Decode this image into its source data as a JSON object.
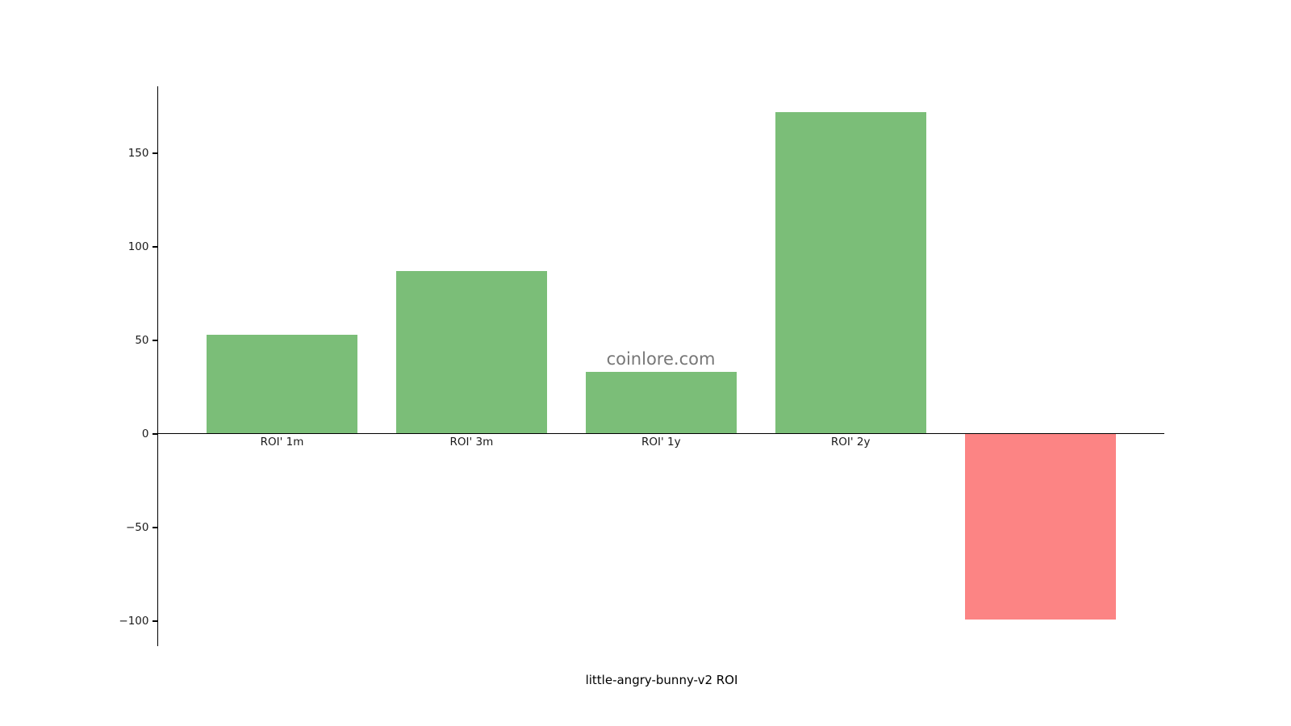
{
  "chart_data": {
    "type": "bar",
    "title": "little-angry-bunny-v2 ROI",
    "watermark": "coinlore.com",
    "categories": [
      "ROI' 1m",
      "ROI' 3m",
      "ROI' 1y",
      "ROI' 2y",
      ""
    ],
    "values": [
      53,
      87,
      33,
      172,
      -99
    ],
    "bar_colors": [
      "#7bbe78",
      "#7bbe78",
      "#7bbe78",
      "#7bbe78",
      "#fc8484"
    ],
    "positive_color": "#7bbe78",
    "negative_color": "#fc8484",
    "xlabel": "",
    "ylabel": "",
    "y_ticks": [
      150,
      100,
      50,
      0,
      -50,
      -100
    ],
    "y_tick_labels": [
      "150",
      "100",
      "50",
      "0",
      "−50",
      "−100"
    ],
    "ylim": [
      -113,
      186
    ],
    "grid": false,
    "legend": null,
    "axis_color": "#000000",
    "text_color": "#1a1a1a",
    "watermark_color": "#777777",
    "background_color": "#ffffff"
  }
}
